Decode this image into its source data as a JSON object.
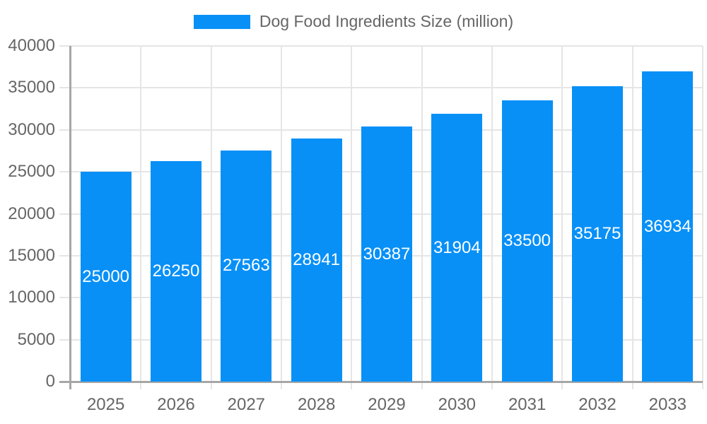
{
  "legend": {
    "label": "Dog Food Ingredients Size (million)"
  },
  "chart_data": {
    "type": "bar",
    "title": "",
    "series_name": "Dog Food Ingredients Size (million)",
    "categories": [
      "2025",
      "2026",
      "2027",
      "2028",
      "2029",
      "2030",
      "2031",
      "2032",
      "2033"
    ],
    "values": [
      25000,
      26250,
      27563,
      28941,
      30387,
      31904,
      33500,
      35175,
      36934
    ],
    "xlabel": "",
    "ylabel": "",
    "ylim": [
      0,
      40000
    ],
    "ytick_step": 5000,
    "ytick_labels": [
      "0",
      "5000",
      "10000",
      "15000",
      "20000",
      "25000",
      "30000",
      "35000",
      "40000"
    ],
    "grid": true,
    "legend_position": "top",
    "value_labels_shown": true,
    "colors": {
      "bar": "#0890f7",
      "grid": "#e5e5e5",
      "axis": "#a6a6a6",
      "text": "#666666",
      "value_label": "#ffffff"
    }
  }
}
